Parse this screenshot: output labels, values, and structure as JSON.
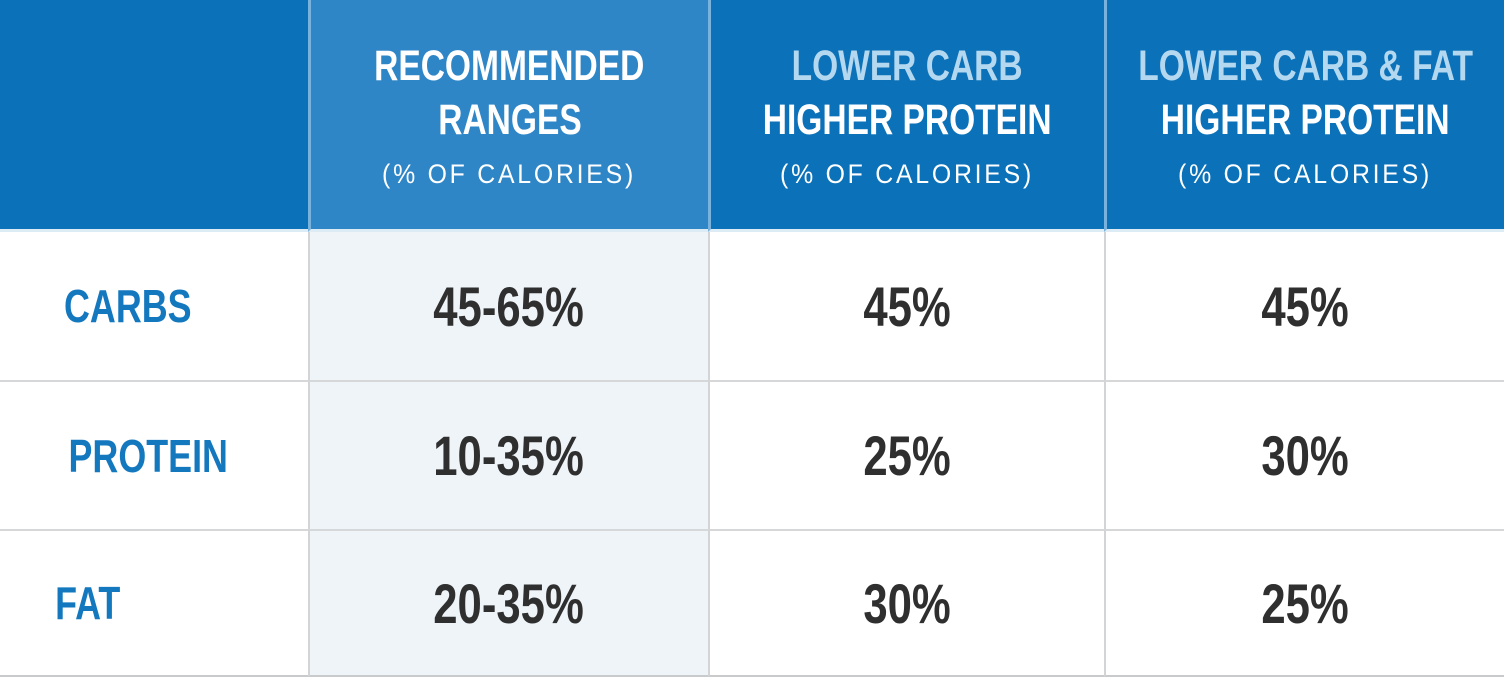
{
  "header": {
    "recommended": {
      "line1": "RECOMMENDED",
      "line2": "RANGES",
      "note": "(% OF CALORIES)"
    },
    "lower_carb": {
      "line1": "LOWER CARB",
      "line2": "HIGHER PROTEIN",
      "note": "(% OF CALORIES)"
    },
    "lower_carb_fat": {
      "line1": "LOWER CARB & FAT",
      "line2": "HIGHER PROTEIN",
      "note": "(% OF CALORIES)"
    }
  },
  "rows": [
    {
      "label": "CARBS",
      "recommended": "45-65%",
      "lower_carb": "45%",
      "lower_carb_fat": "45%"
    },
    {
      "label": "PROTEIN",
      "recommended": "10-35%",
      "lower_carb": "25%",
      "lower_carb_fat": "30%"
    },
    {
      "label": "FAT",
      "recommended": "20-35%",
      "lower_carb": "30%",
      "lower_carb_fat": "25%"
    }
  ],
  "colors": {
    "header_blue": "#0b71b8",
    "header_highlight_blue": "#2f86c7",
    "pale_blue_text": "#b4d8ef",
    "shaded_cell_bg": "#eff4f9",
    "row_label_blue": "#1478be",
    "value_dark": "#2f2f2f"
  },
  "chart_data": {
    "type": "table",
    "columns": [
      "",
      "RECOMMENDED RANGES (% OF CALORIES)",
      "LOWER CARB HIGHER PROTEIN (% OF CALORIES)",
      "LOWER CARB & FAT HIGHER PROTEIN (% OF CALORIES)"
    ],
    "rows": [
      [
        "CARBS",
        "45-65%",
        "45%",
        "45%"
      ],
      [
        "PROTEIN",
        "10-35%",
        "25%",
        "30%"
      ],
      [
        "FAT",
        "20-35%",
        "30%",
        "25%"
      ]
    ]
  }
}
